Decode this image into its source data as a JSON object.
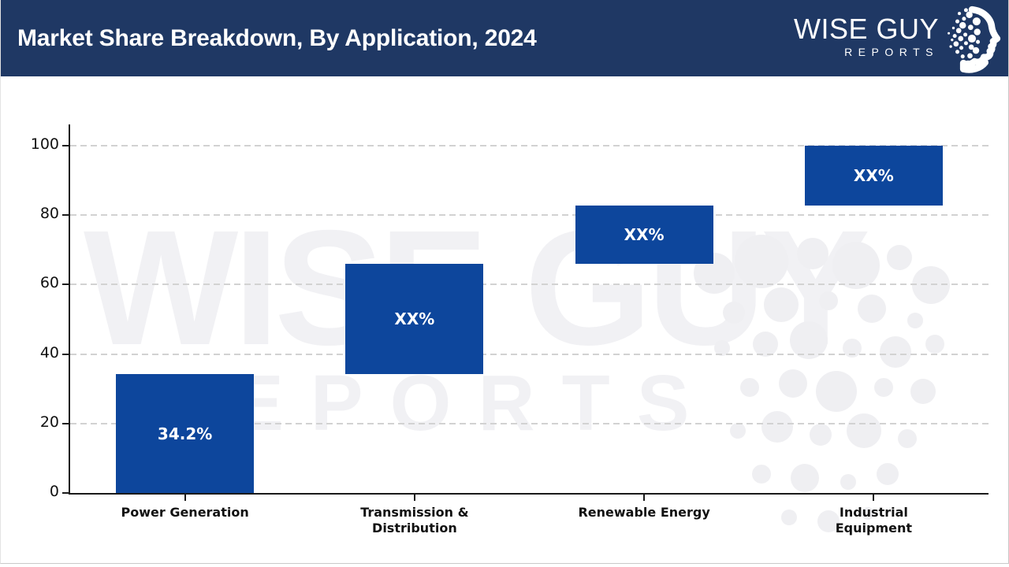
{
  "header": {
    "title": "Market Share Breakdown, By Application, 2024",
    "logo_line1": "WISE GUY",
    "logo_line2": "REPORTS"
  },
  "watermark": {
    "line1": "WISE GUY",
    "line2": "REPORTS"
  },
  "colors": {
    "header_bg": "#1f3864",
    "bar_blue": "#0d469c",
    "axis": "#1a1a1a",
    "text_dark": "#111111",
    "grid_line": "#d2d2d2",
    "bar_label": "#ffffff",
    "watermark_gray": "#f1f1f4"
  },
  "chart_data": {
    "type": "bar",
    "subtype": "floating-range-waterfall",
    "title": "Market Share Breakdown, By Application, 2024",
    "categories": [
      "Power Generation",
      "Transmission &\nDistribution",
      "Renewable Energy",
      "Industrial\nEquipment"
    ],
    "bars": [
      {
        "category": "Power Generation",
        "start": 0,
        "end": 34.2,
        "label": "34.2%"
      },
      {
        "category": "Transmission & Distribution",
        "start": 34.2,
        "end": 66,
        "label": "XX%"
      },
      {
        "category": "Renewable Energy",
        "start": 66,
        "end": 82.8,
        "label": "XX%"
      },
      {
        "category": "Industrial Equipment",
        "start": 82.8,
        "end": 100,
        "label": "XX%"
      }
    ],
    "xlabel": "",
    "ylabel": "",
    "ylim": [
      0,
      100
    ],
    "yticks": [
      0,
      20,
      40,
      60,
      80,
      100
    ],
    "grid": {
      "horizontal": true,
      "style": "dashed"
    },
    "legend": "none"
  }
}
